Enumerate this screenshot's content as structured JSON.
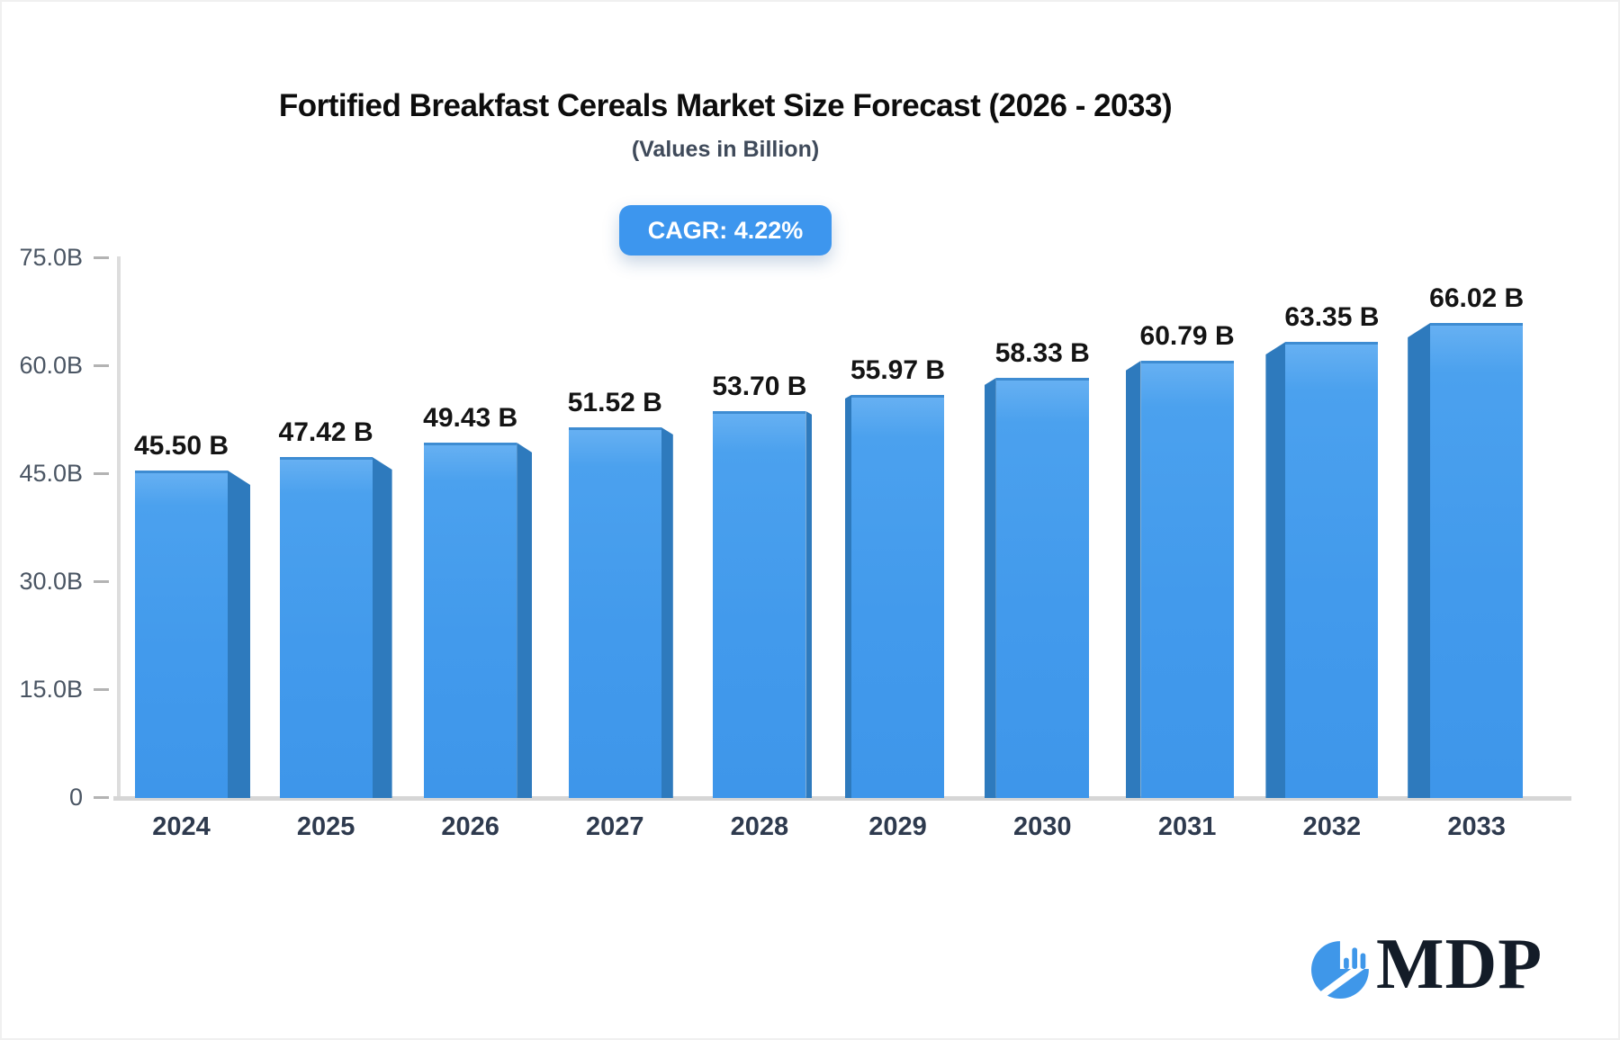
{
  "chart_data": {
    "type": "bar",
    "title": "Fortified Breakfast Cereals Market Size Forecast (2026 - 2033)",
    "subtitle": "(Values in Billion)",
    "badge_label": "CAGR: 4.22%",
    "categories": [
      "2024",
      "2025",
      "2026",
      "2027",
      "2028",
      "2029",
      "2030",
      "2031",
      "2032",
      "2033"
    ],
    "values": [
      45.5,
      47.42,
      49.43,
      51.52,
      53.7,
      55.97,
      58.33,
      60.79,
      63.35,
      66.02
    ],
    "bar_labels": [
      "45.50 B",
      "47.42 B",
      "49.43 B",
      "51.52 B",
      "53.70 B",
      "55.97 B",
      "58.33 B",
      "60.79 B",
      "63.35 B",
      "66.02 B"
    ],
    "unit": "B",
    "y_ticks": [
      {
        "label": "75.0B",
        "value": 75
      },
      {
        "label": "60.0B",
        "value": 60
      },
      {
        "label": "45.0B",
        "value": 45
      },
      {
        "label": "30.0B",
        "value": 30
      },
      {
        "label": "15.0B",
        "value": 15
      },
      {
        "label": "0",
        "value": 0
      }
    ],
    "ylim": [
      0,
      75
    ],
    "grid": false,
    "legend": null
  },
  "colors": {
    "bar_face": "#429AEC",
    "bar_side": "#2E7ABD",
    "badge_bg": "#3D96EE",
    "axis_line": "#DDDDDD",
    "baseline": "#D6D6D6",
    "tick": "#B3B3B3",
    "y_label": "#4A5563",
    "x_label": "#2E3A4E",
    "value_label": "#141414",
    "logo_blue": "#3F97E9",
    "logo_text": "#131C28"
  },
  "logo": {
    "text": "MDP",
    "icon": "pie-bar-chart-icon"
  }
}
